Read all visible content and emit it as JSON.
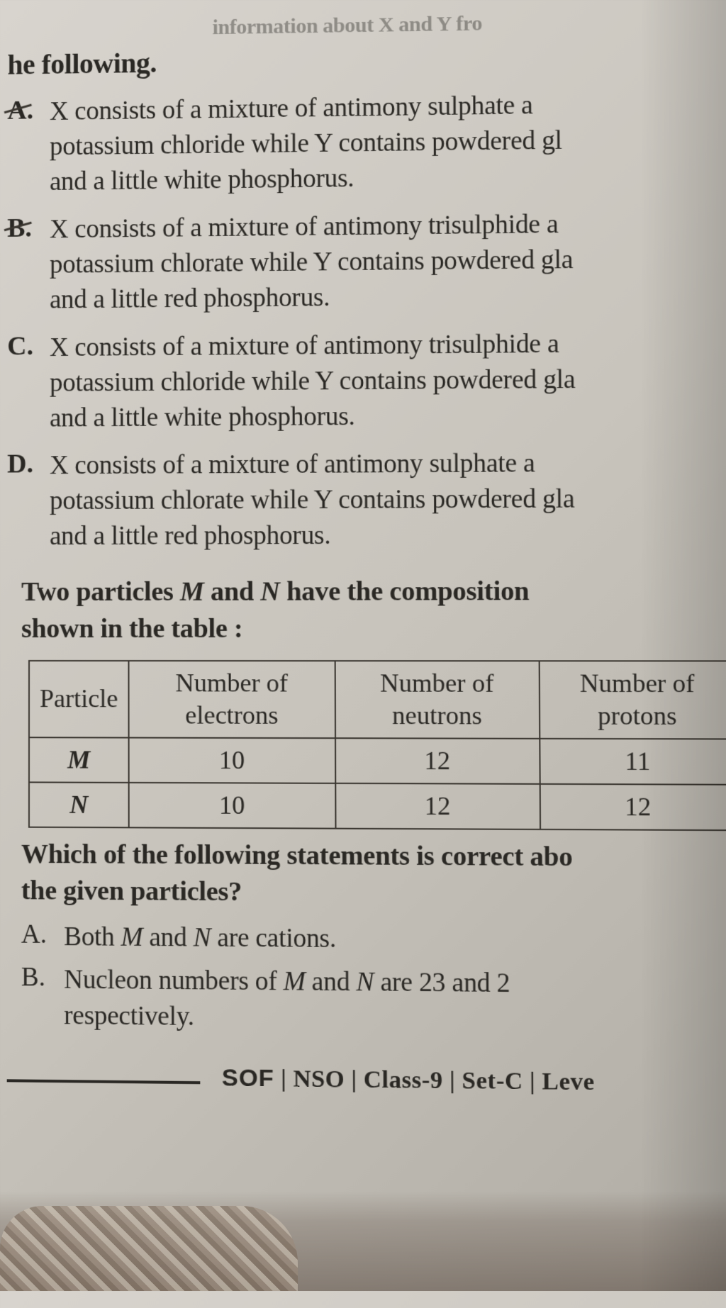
{
  "header_fragment": "information about X and Y fro",
  "heading": "he following.",
  "options": [
    {
      "label": "A.",
      "struck": true,
      "text_parts": [
        "X consists of a mixture of antimony sulphate a",
        "potassium chloride while Y contains powdered gl",
        "and a little white phosphorus."
      ]
    },
    {
      "label": "B.",
      "struck": true,
      "text_parts": [
        "X consists of a mixture of antimony trisulphide a",
        "potassium chlorate while Y contains powdered gla",
        "and a little red phosphorus."
      ]
    },
    {
      "label": "C.",
      "struck": false,
      "text_parts": [
        "X consists of a mixture of antimony trisulphide a",
        "potassium chloride while Y contains powdered gla",
        "and a little white phosphorus."
      ]
    },
    {
      "label": "D.",
      "struck": false,
      "text_parts": [
        "X consists of a mixture of antimony sulphate a",
        "potassium chlorate while Y contains powdered gla",
        "and a little red phosphorus."
      ]
    }
  ],
  "question_intro_line1": "Two particles ",
  "question_intro_M": "M",
  "question_intro_mid": " and ",
  "question_intro_N": "N",
  "question_intro_line1_end": " have the composition ",
  "question_intro_line2": "shown in the table :",
  "table": {
    "headers": [
      "Particle",
      "Number of electrons",
      "Number of neutrons",
      "Number of protons"
    ],
    "rows": [
      [
        "M",
        "10",
        "12",
        "11"
      ],
      [
        "N",
        "10",
        "12",
        "12"
      ]
    ],
    "border_color": "#3a3630",
    "cell_fontsize": 36
  },
  "which_line1": "Which of the following statements is correct abo",
  "which_line2": "the given particles?",
  "answers": [
    {
      "label": "A.",
      "prefix": "Both ",
      "m": "M",
      "mid": " and ",
      "n": "N",
      "suffix": " are cations."
    },
    {
      "label": "B.",
      "prefix": "Nucleon numbers of ",
      "m": "M",
      "mid": " and ",
      "n": "N",
      "suffix": " are 23 and 2",
      "line2": "respectively."
    }
  ],
  "footer": {
    "sof": "SOF",
    "rest": " | NSO | Class-9 | Set-C | Leve"
  },
  "colors": {
    "text": "#2a2824",
    "bg_light": "#d8d4ce",
    "bg_mid": "#c8c4bc",
    "bg_dark": "#b0aca4"
  }
}
